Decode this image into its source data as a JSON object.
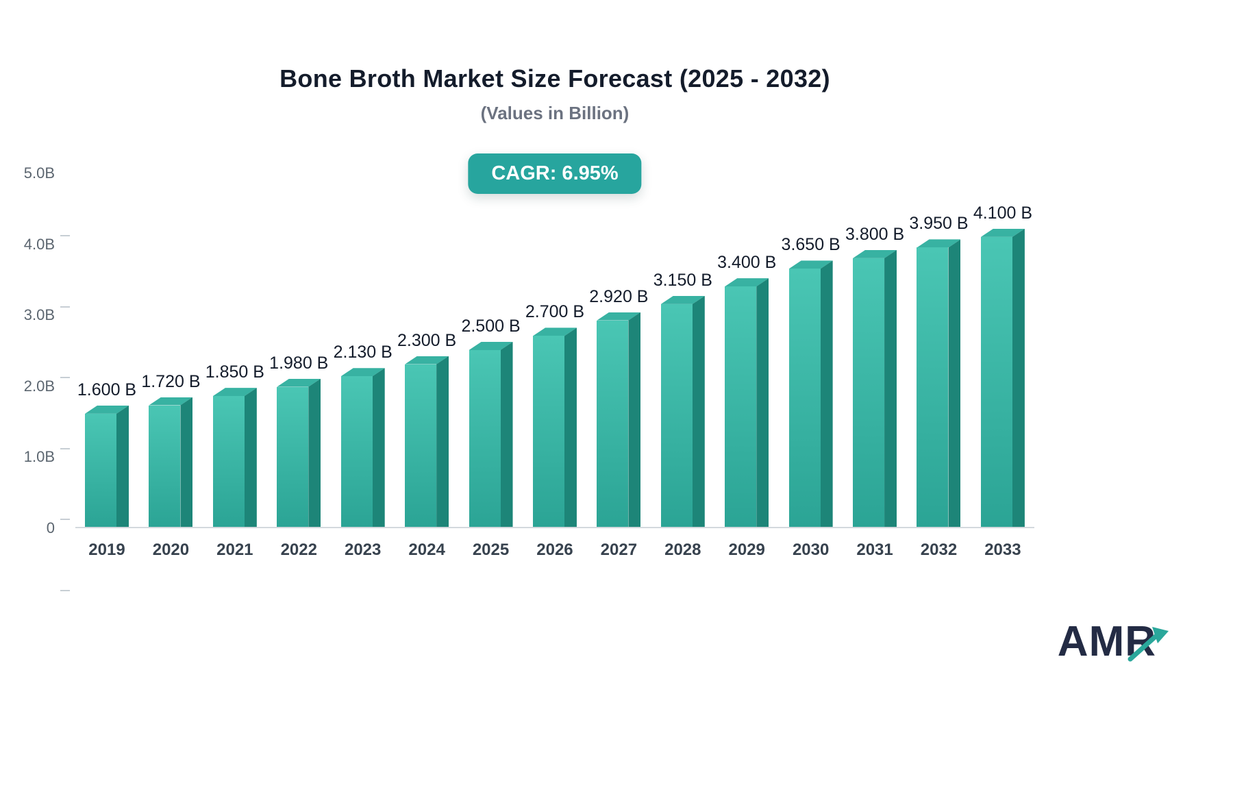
{
  "title": "Bone Broth Market Size Forecast (2025 - 2032)",
  "subtitle": "(Values in Billion)",
  "badge": {
    "label": "CAGR: 6.95%"
  },
  "logo": {
    "text": "AMR",
    "arrow_icon": "growth-arrow-icon"
  },
  "colors": {
    "teal": "#2AA79B",
    "badge_bg": "#27A59E",
    "bar_front_top": "#4AC6B4",
    "bar_front_bottom": "#2BA495",
    "bar_side": "#1D8578",
    "bar_top": "#38B2A2",
    "axis_line": "#D3D9DD",
    "logo_color": "#232B44"
  },
  "chart_data": {
    "type": "bar",
    "title": "Bone Broth Market Size Forecast (2025 - 2032)",
    "subtitle": "(Values in Billion)",
    "xlabel": "",
    "ylabel": "",
    "categories": [
      "2019",
      "2020",
      "2021",
      "2022",
      "2023",
      "2024",
      "2025",
      "2026",
      "2027",
      "2028",
      "2029",
      "2030",
      "2031",
      "2032",
      "2033"
    ],
    "values": [
      1.6,
      1.72,
      1.85,
      1.98,
      2.13,
      2.3,
      2.5,
      2.7,
      2.92,
      3.15,
      3.4,
      3.65,
      3.8,
      3.95,
      4.1
    ],
    "value_labels": [
      "1.600 B",
      "1.720 B",
      "1.850 B",
      "1.980 B",
      "2.130 B",
      "2.300 B",
      "2.500 B",
      "2.700 B",
      "2.920 B",
      "3.150 B",
      "3.400 B",
      "3.650 B",
      "3.800 B",
      "3.950 B",
      "4.100 B"
    ],
    "ylim": [
      0,
      5
    ],
    "yticks": [
      {
        "value": 0,
        "label": "0"
      },
      {
        "value": 1,
        "label": "1.0B"
      },
      {
        "value": 2,
        "label": "2.0B"
      },
      {
        "value": 3,
        "label": "3.0B"
      },
      {
        "value": 4,
        "label": "4.0B"
      },
      {
        "value": 5,
        "label": "5.0B"
      }
    ],
    "grid": false,
    "legend": false,
    "annotation": "CAGR: 6.95%"
  }
}
